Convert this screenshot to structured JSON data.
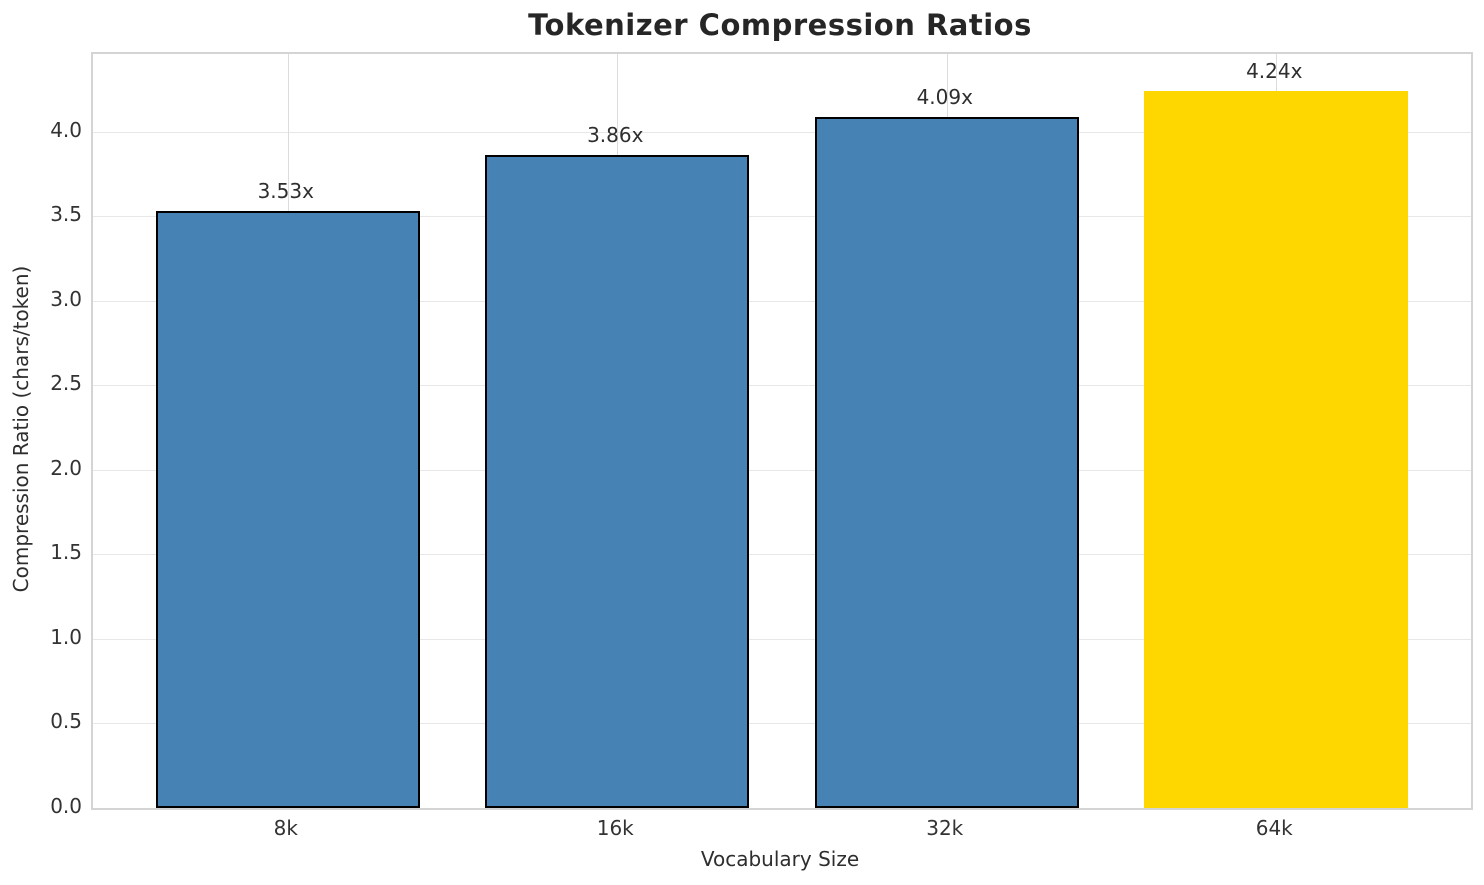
{
  "chart_data": {
    "type": "bar",
    "title": "Tokenizer Compression Ratios",
    "xlabel": "Vocabulary Size",
    "ylabel": "Compression Ratio (chars/token)",
    "categories": [
      "8k",
      "16k",
      "32k",
      "64k"
    ],
    "values": [
      3.53,
      3.86,
      4.09,
      4.24
    ],
    "bar_labels": [
      "3.53x",
      "3.86x",
      "4.09x",
      "4.24x"
    ],
    "bar_colors": [
      "#4682B4",
      "#4682B4",
      "#4682B4",
      "#FFD700"
    ],
    "bar_edge_colors": [
      "#000000",
      "#000000",
      "#000000",
      "none"
    ],
    "ylim": [
      0,
      4.46
    ],
    "yticks": [
      0.0,
      0.5,
      1.0,
      1.5,
      2.0,
      2.5,
      3.0,
      3.5,
      4.0
    ],
    "ytick_labels": [
      "0.0",
      "0.5",
      "1.0",
      "1.5",
      "2.0",
      "2.5",
      "3.0",
      "3.5",
      "4.0"
    ],
    "grid": true,
    "legend": "none",
    "colors": {
      "grid_horizontal": "#e7e7e7",
      "grid_vertical": "#dcdcdc",
      "spine": "#d4d4d4",
      "text": "#2e2e2e",
      "highlight": "#FFD700",
      "primary": "#4682B4"
    }
  }
}
